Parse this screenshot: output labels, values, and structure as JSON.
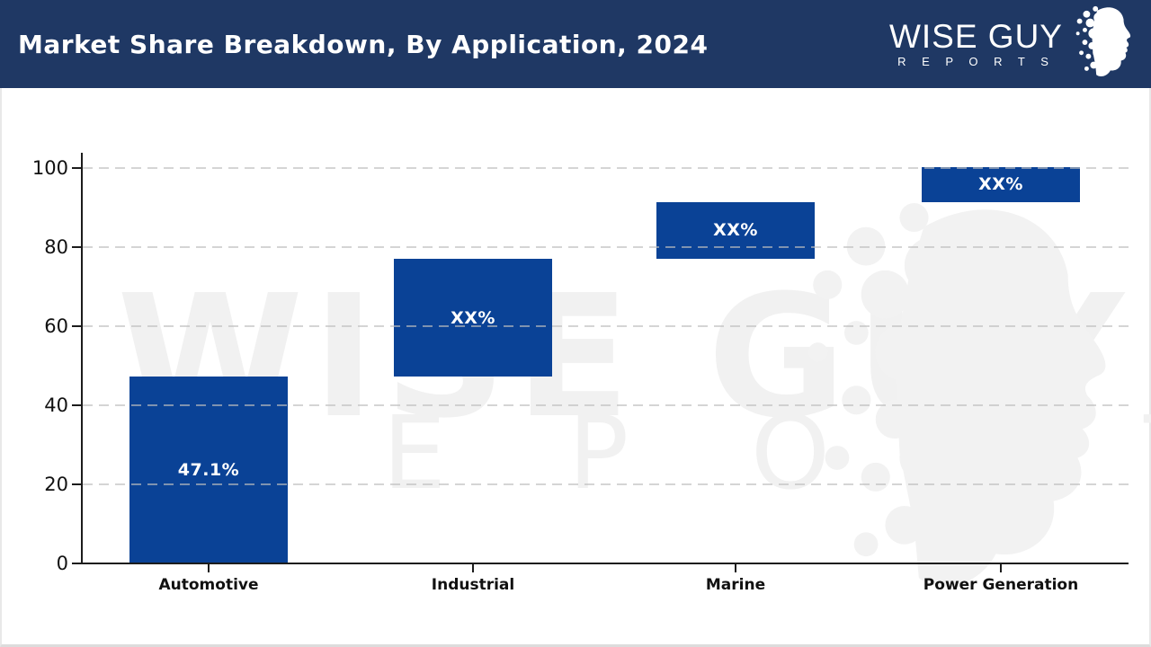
{
  "header": {
    "title": "Market Share Breakdown, By Application, 2024",
    "logo": {
      "line1": "WISE GUY",
      "line2": "R E P O R T S"
    }
  },
  "watermark": {
    "line1": "WISE GUY",
    "line2": "R E P O R T S"
  },
  "colors": {
    "header_bg": "#1f3864",
    "bar": "#0a4296",
    "grid": "#d9d9d9",
    "axis": "#1c1c1c",
    "bar_label": "#ffffff",
    "watermark": "#f1f1f1"
  },
  "chart_data": {
    "type": "bar",
    "variant": "waterfall",
    "title": "Market Share Breakdown, By Application, 2024",
    "categories": [
      "Automotive",
      "Industrial",
      "Marine",
      "Power Generation"
    ],
    "segments": [
      {
        "category": "Automotive",
        "start": 0,
        "end": 47.1,
        "label": "47.1%"
      },
      {
        "category": "Industrial",
        "start": 47.1,
        "end": 76.9,
        "label": "XX%"
      },
      {
        "category": "Marine",
        "start": 76.9,
        "end": 91.2,
        "label": "XX%"
      },
      {
        "category": "Power Generation",
        "start": 91.2,
        "end": 100,
        "label": "XX%"
      }
    ],
    "yticks": [
      "100",
      "80",
      "60",
      "40",
      "20",
      "0"
    ],
    "ylim": [
      0,
      103
    ],
    "grid": "dashed-horizontal",
    "legend": "none",
    "bar_color": "#0a4296",
    "value_labels_position": "center"
  }
}
